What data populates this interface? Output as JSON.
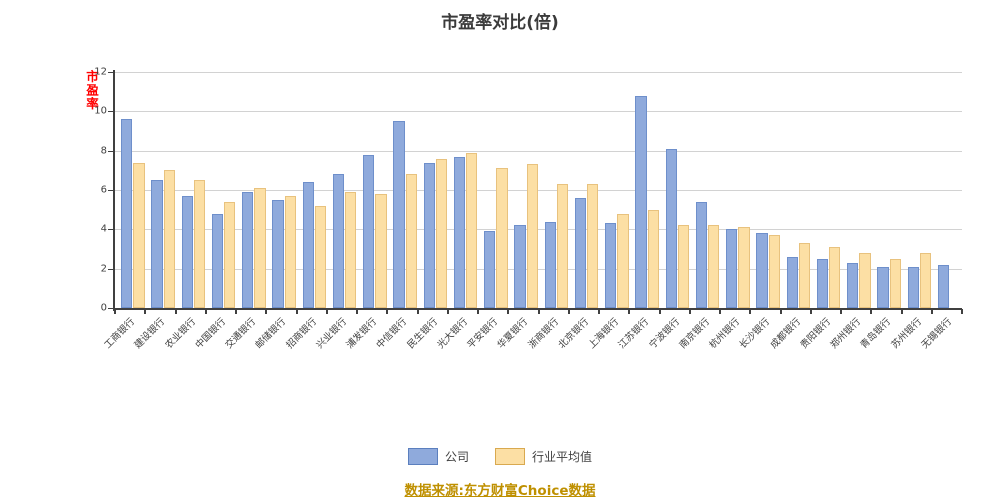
{
  "title": "市盈率对比(倍)",
  "y_axis_title": "市盈率",
  "footnote": "数据来源:东方财富Choice数据",
  "colors": {
    "series1_fill": "#8faadc",
    "series1_border": "#6e8fcb",
    "series2_fill": "#fcdfa4",
    "series2_border": "#e8c27e",
    "axis": "#404040",
    "gridline": "#d2d2d2",
    "y_title_red": "#ff0000",
    "footnote_gold": "#bf9000"
  },
  "chart_data": {
    "type": "bar",
    "title": "市盈率对比(倍)",
    "xlabel": "",
    "ylabel": "市盈率",
    "ylim": [
      0,
      12
    ],
    "yticks": [
      0,
      2,
      4,
      6,
      8,
      10,
      12
    ],
    "grid": true,
    "legend_position": "bottom",
    "categories": [
      "工商银行",
      "建设银行",
      "农业银行",
      "中国银行",
      "交通银行",
      "邮储银行",
      "招商银行",
      "兴业银行",
      "浦发银行",
      "中信银行",
      "民生银行",
      "光大银行",
      "平安银行",
      "华夏银行",
      "浙商银行",
      "北京银行",
      "上海银行",
      "江苏银行",
      "宁波银行",
      "南京银行",
      "杭州银行",
      "长沙银行",
      "成都银行",
      "贵阳银行",
      "郑州银行",
      "青岛银行",
      "苏州银行",
      "无锡银行"
    ],
    "series": [
      {
        "name": "公司",
        "color": "#8faadc",
        "values": [
          9.6,
          6.5,
          5.7,
          4.8,
          5.9,
          5.5,
          6.4,
          6.8,
          7.8,
          9.5,
          7.4,
          7.7,
          3.9,
          4.2,
          4.4,
          5.6,
          4.3,
          10.8,
          8.1,
          5.4,
          4.0,
          3.8,
          2.6,
          2.5,
          2.3,
          2.1,
          2.1,
          2.2
        ]
      },
      {
        "name": "行业平均值",
        "color": "#fcdfa4",
        "values": [
          7.4,
          7.0,
          6.5,
          5.4,
          6.1,
          5.7,
          5.2,
          5.9,
          5.8,
          6.8,
          7.6,
          7.9,
          7.1,
          7.3,
          6.3,
          6.3,
          4.8,
          5.0,
          4.2,
          4.2,
          4.1,
          3.7,
          3.3,
          3.1,
          2.8,
          2.5,
          2.8,
          null
        ]
      }
    ]
  }
}
